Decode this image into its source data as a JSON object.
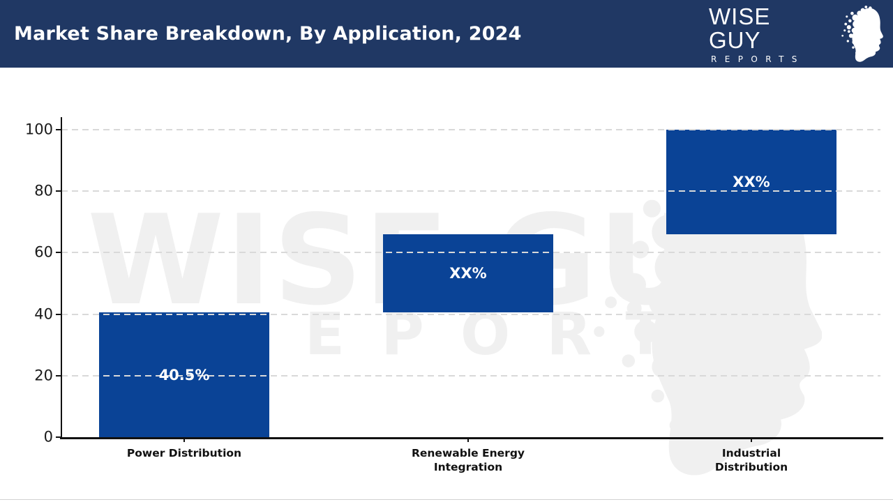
{
  "header": {
    "title": "Market Share Breakdown, By Application, 2024",
    "background": "#203864",
    "logo": {
      "line1": "WISE GUY",
      "line2": "REPORTS"
    }
  },
  "watermark": {
    "line1": "WISE GUY",
    "line2": "REPORTS"
  },
  "chart_data": {
    "type": "bar",
    "subtype": "waterfall",
    "title": "Market Share Breakdown, By Application, 2024",
    "categories": [
      "Power Distribution",
      "Renewable Energy\nIntegration",
      "Industrial\nDistribution"
    ],
    "segments": [
      {
        "category": "Power Distribution",
        "start": 0,
        "end": 40.5,
        "label": "40.5%"
      },
      {
        "category": "Renewable Energy Integration",
        "start": 40.5,
        "end": 66,
        "label": "XX%"
      },
      {
        "category": "Industrial Distribution",
        "start": 66,
        "end": 100,
        "label": "XX%"
      }
    ],
    "yticks": [
      0,
      20,
      40,
      60,
      80,
      100
    ],
    "ylim": [
      0,
      104
    ],
    "xlabel": "",
    "ylabel": "",
    "grid": "horizontal-dashed",
    "legend": "none",
    "bar_color": "#0a4396",
    "bar_label_color": "#ffffff",
    "axis_color": "#111111",
    "gridline_color": "#d9d9d9"
  }
}
